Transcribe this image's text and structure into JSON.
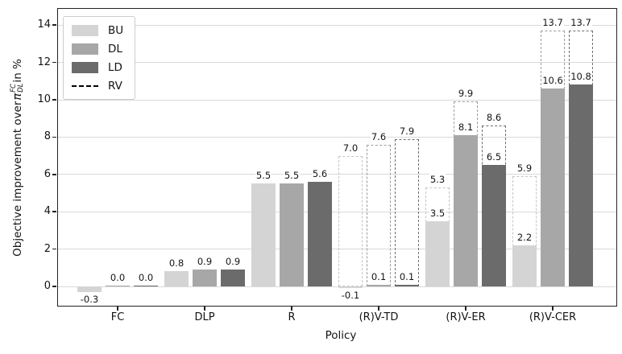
{
  "figure": {
    "xlabel": "Policy",
    "ylabel": {
      "prefix": "Objective improvement over ",
      "pi": "π",
      "sup": "FC",
      "sub": "DL",
      "suffix": " in %"
    }
  },
  "legend": {
    "position": "upper left",
    "items": [
      {
        "label": "BU",
        "swatch": "patch",
        "color": "#d4d4d4"
      },
      {
        "label": "DL",
        "swatch": "patch",
        "color": "#a7a7a7"
      },
      {
        "label": "LD",
        "swatch": "patch",
        "color": "#6b6b6b"
      },
      {
        "label": "RV",
        "swatch": "dashed-line",
        "color": "#000000"
      }
    ]
  },
  "chart_data": {
    "type": "bar",
    "title": "",
    "xlabel": "Policy",
    "ylabel": "Objective improvement over π_DL^FC in %",
    "categories": [
      "FC",
      "DLP",
      "R",
      "(R)V-TD",
      "(R)V-ER",
      "(R)V-CER"
    ],
    "series": [
      {
        "name": "BU",
        "color": "#d4d4d4",
        "values": [
          -0.3,
          0.8,
          5.5,
          -0.1,
          3.5,
          2.2
        ],
        "labels": [
          "-0.3",
          "0.8",
          "5.5",
          "-0.1",
          "3.5",
          "2.2"
        ]
      },
      {
        "name": "DL",
        "color": "#a7a7a7",
        "values": [
          0.0,
          0.9,
          5.5,
          0.1,
          8.1,
          10.6
        ],
        "labels": [
          "0.0",
          "0.9",
          "5.5",
          "0.1",
          "8.1",
          "10.6"
        ]
      },
      {
        "name": "LD",
        "color": "#6b6b6b",
        "values": [
          0.0,
          0.9,
          5.6,
          0.1,
          6.5,
          10.8
        ],
        "labels": [
          "0.0",
          "0.9",
          "5.6",
          "0.1",
          "6.5",
          "10.8"
        ]
      }
    ],
    "rv_series": [
      {
        "name": "RV (BU)",
        "edge_color": "#c4c4c4",
        "values": [
          null,
          null,
          null,
          7.0,
          5.3,
          5.9
        ],
        "labels": [
          null,
          null,
          null,
          "7.0",
          "5.3",
          "5.9"
        ]
      },
      {
        "name": "RV (DL)",
        "edge_color": "#9c9c9c",
        "values": [
          null,
          null,
          null,
          7.6,
          9.9,
          13.7
        ],
        "labels": [
          null,
          null,
          null,
          "7.6",
          "9.9",
          "13.7"
        ]
      },
      {
        "name": "RV (LD)",
        "edge_color": "#6e6e6e",
        "values": [
          null,
          null,
          null,
          7.9,
          8.6,
          13.7
        ],
        "labels": [
          null,
          null,
          null,
          "7.9",
          "8.6",
          "13.7"
        ]
      }
    ],
    "yticks": [
      0,
      2,
      4,
      6,
      8,
      10,
      12,
      14
    ],
    "ylim": [
      -1.08,
      14.91
    ],
    "grid": true,
    "legend_position": "upper left"
  }
}
